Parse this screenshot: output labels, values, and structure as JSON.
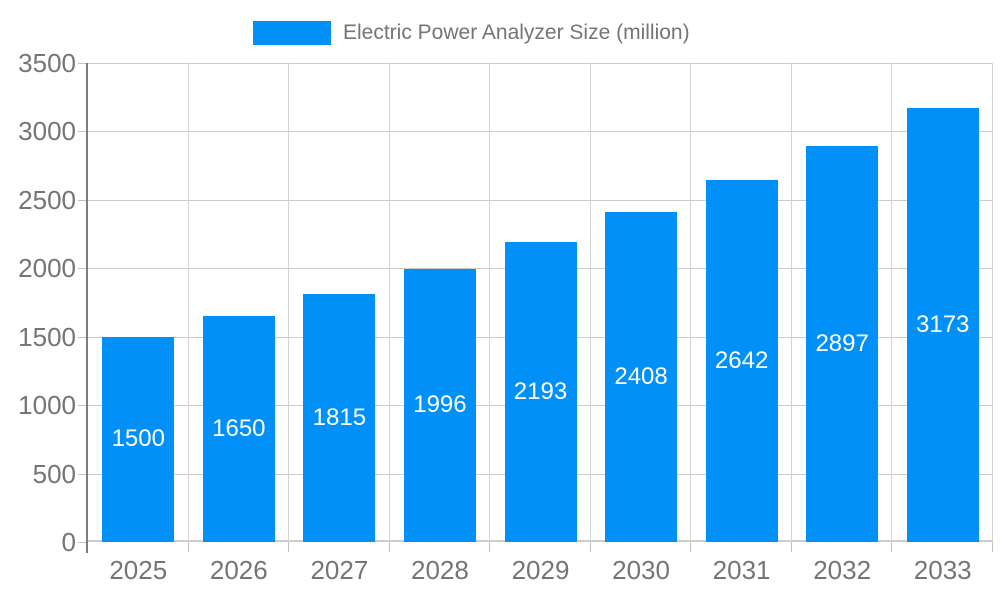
{
  "legend": {
    "label": "Electric Power Analyzer Size (million)"
  },
  "chart_data": {
    "type": "bar",
    "title": "Electric Power Analyzer Size (million)",
    "series_name": "Electric Power Analyzer Size (million)",
    "categories": [
      "2025",
      "2026",
      "2027",
      "2028",
      "2029",
      "2030",
      "2031",
      "2032",
      "2033"
    ],
    "values": [
      1500,
      1650,
      1815,
      1996,
      2193,
      2408,
      2642,
      2897,
      3173
    ],
    "xlabel": "",
    "ylabel": "",
    "ylim": [
      0,
      3500
    ],
    "yticks": [
      0,
      500,
      1000,
      1500,
      2000,
      2500,
      3000,
      3500
    ],
    "grid": true,
    "legend_position": "top",
    "colors": {
      "bar": "#0190f8",
      "value_label": "#ffffff",
      "axis_text": "#757575",
      "gridline": "#cccccc",
      "axis_line": "#7d7d7d"
    }
  }
}
